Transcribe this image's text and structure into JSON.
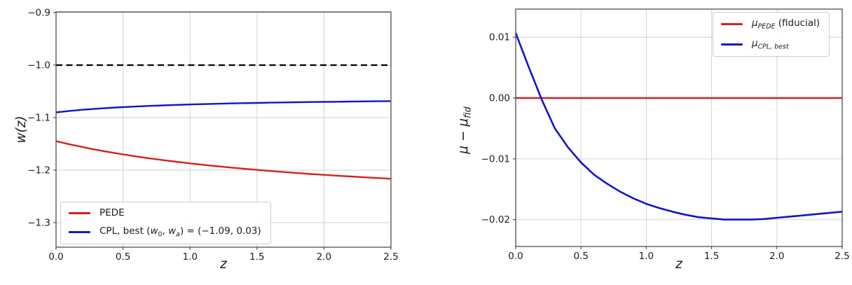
{
  "figure": {
    "background": "#ffffff",
    "description": "Two-panel line figure comparing PEDE and best-fit CPL dark energy models"
  },
  "colors": {
    "pede_red": "#d62020",
    "cpl_blue": "#1414cc",
    "reference_black": "#000000",
    "grid": "#d2d2d2",
    "spine": "#4d4d4d",
    "text": "#1c1c1c",
    "legend_border": "#cccccc"
  },
  "chart_data": [
    {
      "type": "line",
      "title": "",
      "xlabel": "z",
      "ylabel": "w(z)",
      "ylabel_html": "<i>w</i>(<i>z</i>)",
      "xlim": [
        0.0,
        2.5
      ],
      "ylim": [
        -1.3467,
        -0.8987
      ],
      "xticks": [
        0.0,
        0.5,
        1.0,
        1.5,
        2.0,
        2.5
      ],
      "xtick_labels": [
        "0.0",
        "0.5",
        "1.0",
        "1.5",
        "2.0",
        "2.5"
      ],
      "yticks": [
        -0.9,
        -1.0,
        -1.1,
        -1.2,
        -1.3
      ],
      "ytick_labels": [
        "−0.9",
        "−1.0",
        "−1.1",
        "−1.2",
        "−1.3"
      ],
      "grid": true,
      "legend_position": "lower left",
      "x": [
        0.0,
        0.1,
        0.2,
        0.3,
        0.4,
        0.5,
        0.6,
        0.7,
        0.8,
        0.9,
        1.0,
        1.1,
        1.2,
        1.3,
        1.4,
        1.5,
        1.6,
        1.7,
        1.8,
        1.9,
        2.0,
        2.1,
        2.2,
        2.3,
        2.4,
        2.5
      ],
      "series": [
        {
          "name": "lcdm-reference",
          "label": null,
          "label_html": null,
          "color": "#000000",
          "width": 2.2,
          "dash": "9 5.5",
          "x": [
            0.0,
            2.5
          ],
          "y": [
            -1.0,
            -1.0
          ]
        },
        {
          "name": "pede",
          "label": "PEDE",
          "label_html": "PEDE",
          "color": "#d62020",
          "width": 2.4,
          "dash": null,
          "y": [
            -1.1448,
            -1.1508,
            -1.1562,
            -1.1612,
            -1.1658,
            -1.17,
            -1.1739,
            -1.1776,
            -1.1809,
            -1.1841,
            -1.1871,
            -1.1899,
            -1.1925,
            -1.195,
            -1.1973,
            -1.1995,
            -1.2016,
            -1.2036,
            -1.2055,
            -1.2073,
            -1.209,
            -1.2106,
            -1.2121,
            -1.2136,
            -1.215,
            -1.2164
          ]
        },
        {
          "name": "cpl-best",
          "label": "CPL, best (w_0, w_a) = (−1.09, 0.03)",
          "label_html": "CPL, best (<i>w</i><sub>0</sub>, <i>w</i><sub><i>a</i></sub>) = (−1.09, 0.03)",
          "color": "#1414cc",
          "width": 2.4,
          "dash": null,
          "y": [
            -1.09,
            -1.0873,
            -1.085,
            -1.0831,
            -1.0814,
            -1.08,
            -1.0788,
            -1.0776,
            -1.0767,
            -1.0758,
            -1.075,
            -1.0743,
            -1.0736,
            -1.073,
            -1.0725,
            -1.072,
            -1.0715,
            -1.0711,
            -1.0707,
            -1.0703,
            -1.07,
            -1.0697,
            -1.0694,
            -1.0691,
            -1.0688,
            -1.0686
          ]
        }
      ]
    },
    {
      "type": "line",
      "title": "",
      "xlabel": "z",
      "ylabel": "μ − μ_fid",
      "ylabel_html": "<i>μ</i> − <i>μ</i><sub><i>fid</i></sub>",
      "xlim": [
        0.0,
        2.5
      ],
      "ylim": [
        -0.02442,
        0.01463
      ],
      "xticks": [
        0.0,
        0.5,
        1.0,
        1.5,
        2.0,
        2.5
      ],
      "xtick_labels": [
        "0.0",
        "0.5",
        "1.0",
        "1.5",
        "2.0",
        "2.5"
      ],
      "yticks": [
        0.01,
        0.0,
        -0.01,
        -0.02
      ],
      "ytick_labels": [
        "0.01",
        "0.00",
        "−0.01",
        "−0.02"
      ],
      "grid": true,
      "legend_position": "upper right",
      "x": [
        0.0,
        0.1,
        0.2,
        0.3,
        0.4,
        0.5,
        0.6,
        0.7,
        0.8,
        0.9,
        1.0,
        1.1,
        1.2,
        1.3,
        1.4,
        1.5,
        1.6,
        1.7,
        1.8,
        1.9,
        2.0,
        2.1,
        2.2,
        2.3,
        2.4,
        2.5
      ],
      "series": [
        {
          "name": "mu-pede-fiducial",
          "label": "μ_PEDE (fiducial)",
          "label_html": "<i>μ</i><sub><i>PEDE</i></sub> (fiducial)",
          "color": "#d62020",
          "width": 2.6,
          "dash": null,
          "x": [
            0.0,
            2.5
          ],
          "y": [
            0.0,
            0.0
          ]
        },
        {
          "name": "mu-cpl-best",
          "label": "μ_CPL,best",
          "label_html": "<i>μ</i><sub><i>CPL, best</i></sub>",
          "color": "#1414cc",
          "width": 2.6,
          "dash": null,
          "y": [
            0.0107,
            0.0051,
            -0.0003,
            -0.005,
            -0.0081,
            -0.0106,
            -0.0126,
            -0.0141,
            -0.0154,
            -0.0165,
            -0.0174,
            -0.0181,
            -0.0187,
            -0.0192,
            -0.0196,
            -0.0198,
            -0.02,
            -0.02,
            -0.02,
            -0.0199,
            -0.0197,
            -0.0195,
            -0.0193,
            -0.0191,
            -0.0189,
            -0.0187
          ]
        }
      ]
    }
  ]
}
